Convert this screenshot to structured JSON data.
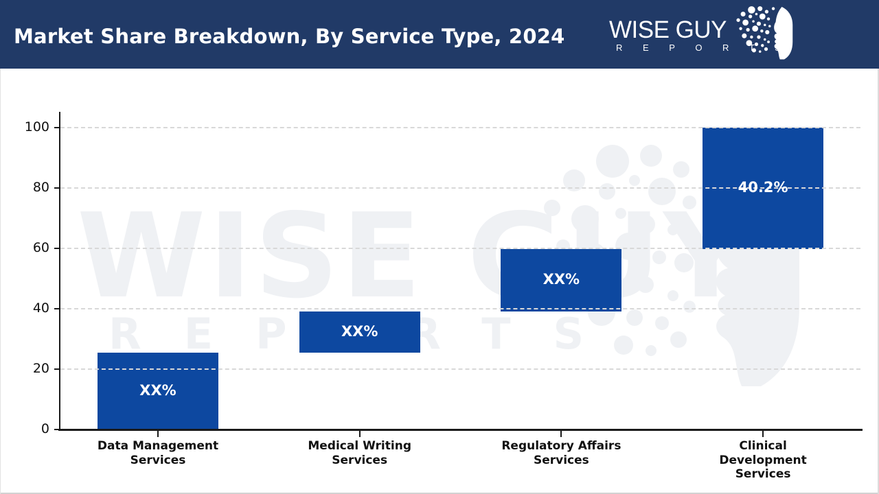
{
  "header": {
    "title": "Market Share Breakdown, By Service Type, 2024",
    "logo": {
      "name": "WISE GUY",
      "sub": "R E P O R T S"
    }
  },
  "watermark": {
    "text": "WISE GUY",
    "sub": "REPORTS"
  },
  "chart_data": {
    "type": "bar",
    "subtype": "waterfall",
    "title": "Market Share Breakdown, By Service Type, 2024",
    "categories": [
      "Data Management\nServices",
      "Medical Writing\nServices",
      "Regulatory Affairs\nServices",
      "Clinical\nDevelopment\nServices"
    ],
    "segments": [
      {
        "category": "Data Management Services",
        "start": 0,
        "end": 25.4,
        "label": "XX%"
      },
      {
        "category": "Medical Writing Services",
        "start": 25.4,
        "end": 39.2,
        "label": "XX%"
      },
      {
        "category": "Regulatory Affairs Services",
        "start": 39.2,
        "end": 59.8,
        "label": "XX%"
      },
      {
        "category": "Clinical Development Services",
        "start": 59.8,
        "end": 100,
        "label": "40.2%"
      }
    ],
    "values": [
      25.4,
      13.8,
      20.6,
      40.2
    ],
    "ylim": [
      0,
      100
    ],
    "yticks": [
      0,
      20,
      40,
      60,
      80,
      100
    ],
    "xlabel": "",
    "ylabel": "",
    "grid": "horizontal-dashed",
    "legend": "none"
  },
  "colors": {
    "header_bg": "#213a67",
    "bar": "#0d48a0",
    "bar_label": "#ffffff",
    "grid": "#d8d8d8",
    "axis": "#1a1a1a",
    "tick_text": "#111111",
    "watermark": "#eff1f4",
    "title_text": "#ffffff"
  }
}
